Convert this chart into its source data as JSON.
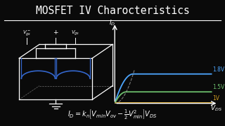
{
  "title": "MOSFET IV Charocteristics",
  "bg_color": "#0a0a0a",
  "fg_color": "#ffffff",
  "title_fontsize": 10.5,
  "curves": [
    {
      "vgs": "1.8V",
      "color": "#4da6ff",
      "vov": 0.8
    },
    {
      "vgs": "1.5V",
      "color": "#6dbf6d",
      "vov": 0.5
    },
    {
      "vgs": "1V",
      "color": "#d4a020",
      "vov": 0.1
    }
  ],
  "axis_color": "#ffffff",
  "dashed_color": "#aaaaaa",
  "mosfet_color": "#ffffff",
  "mosfet_channel_color": "#3366cc"
}
